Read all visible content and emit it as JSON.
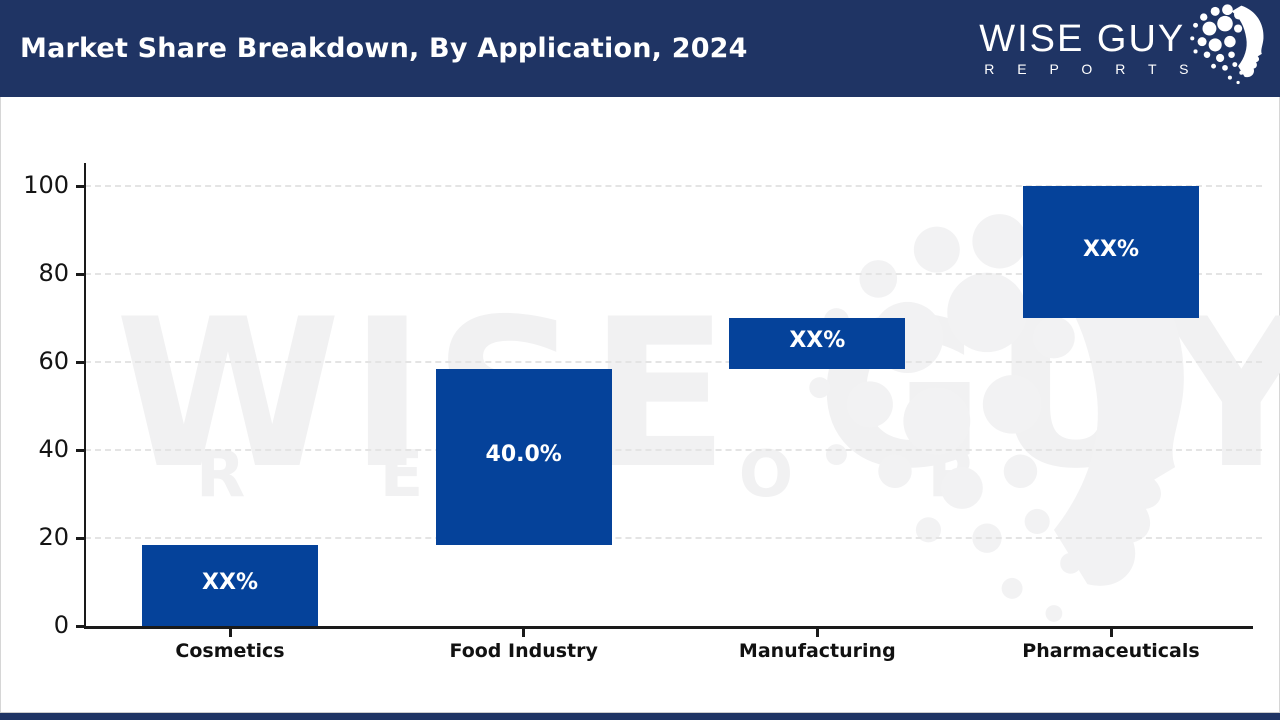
{
  "header": {
    "title": "Market Share Breakdown, By Application, 2024",
    "bg_color": "#1f3464",
    "logo": {
      "line1": "WISE GUY",
      "line2": "R E P O R T S",
      "icon": "dotted-head-profile"
    }
  },
  "watermark": {
    "line1": "WISE GUY",
    "line2": "R E P O R T S",
    "color": "#f1f1f2"
  },
  "chart_data": {
    "type": "bar",
    "subtype": "waterfall-floating-segments",
    "title": "Market Share Breakdown, By Application, 2024",
    "categories": [
      "Cosmetics",
      "Food Industry",
      "Manufacturing",
      "Pharmaceuticals"
    ],
    "segments": [
      {
        "category": "Cosmetics",
        "start": 0,
        "end": 18.5,
        "label": "XX%"
      },
      {
        "category": "Food Industry",
        "start": 18.5,
        "end": 58.5,
        "label": "40.0%"
      },
      {
        "category": "Manufacturing",
        "start": 58.5,
        "end": 70,
        "label": "XX%"
      },
      {
        "category": "Pharmaceuticals",
        "start": 70,
        "end": 100,
        "label": "XX%"
      }
    ],
    "xlabel": "",
    "ylabel": "",
    "ylim": [
      0,
      100
    ],
    "yticks": [
      0,
      20,
      40,
      60,
      80,
      100
    ],
    "grid": {
      "axis": "y",
      "style": "dashed",
      "color": "#e4e4e4"
    },
    "legend": "none",
    "bar_color": "#05429a",
    "value_label_color": "#ffffff",
    "axis_color": "#1a1a1a"
  },
  "footer": {
    "bar_color": "#1f3464"
  }
}
